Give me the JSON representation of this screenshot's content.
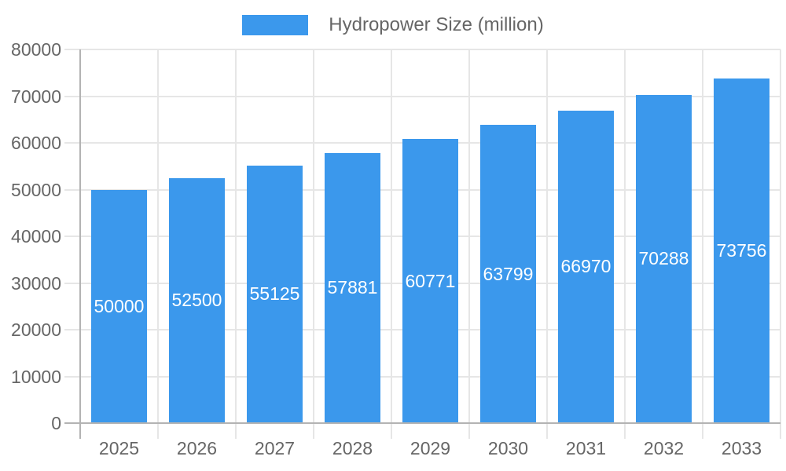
{
  "chart_data": {
    "type": "bar",
    "title": "",
    "legend": {
      "label": "Hydropower Size (million)",
      "position": "top"
    },
    "categories": [
      "2025",
      "2026",
      "2027",
      "2028",
      "2029",
      "2030",
      "2031",
      "2032",
      "2033"
    ],
    "series": [
      {
        "name": "Hydropower Size (million)",
        "color": "#3b98ec",
        "values": [
          50000,
          52500,
          55125,
          57881,
          60771,
          63799,
          66970,
          70288,
          73756
        ]
      }
    ],
    "value_labels": [
      "50000",
      "52500",
      "55125",
      "57881",
      "60771",
      "63799",
      "66970",
      "70288",
      "73756"
    ],
    "xlabel": "",
    "ylabel": "",
    "ylim": [
      0,
      80000
    ],
    "yticks": [
      0,
      10000,
      20000,
      30000,
      40000,
      50000,
      60000,
      70000,
      80000
    ],
    "ytick_labels": [
      "0",
      "10000",
      "20000",
      "30000",
      "40000",
      "50000",
      "60000",
      "70000",
      "80000"
    ],
    "grid": true,
    "colors": {
      "bar": "#3b98ec",
      "axis_text": "#666666",
      "grid_line": "#e6e6e6",
      "axis_line": "#b3b3b3",
      "value_label": "#ffffff",
      "background": "#ffffff"
    }
  }
}
